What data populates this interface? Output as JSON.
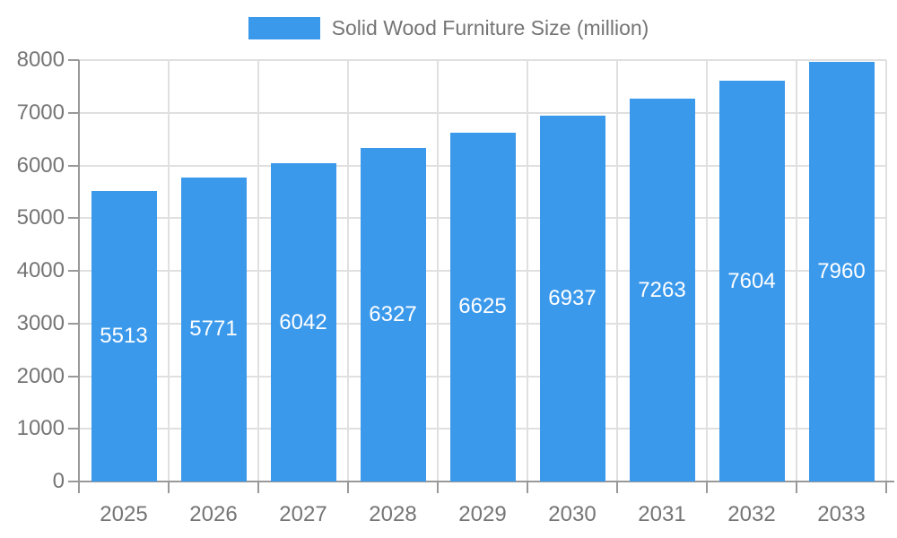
{
  "legend": {
    "label": "Solid Wood Furniture Size (million)",
    "swatch_color": "#3B99EC"
  },
  "chart_data": {
    "type": "bar",
    "title": "Solid Wood Furniture Size (million)",
    "categories": [
      "2025",
      "2026",
      "2027",
      "2028",
      "2029",
      "2030",
      "2031",
      "2032",
      "2033"
    ],
    "series": [
      {
        "name": "Solid Wood Furniture Size (million)",
        "color": "#3B99EC",
        "values": [
          5513,
          5771,
          6042,
          6327,
          6625,
          6937,
          7263,
          7604,
          7960
        ]
      }
    ],
    "xlabel": "",
    "ylabel": "",
    "ylim": [
      0,
      8000
    ],
    "yticks": [
      0,
      1000,
      2000,
      3000,
      4000,
      5000,
      6000,
      7000,
      8000
    ],
    "grid": true,
    "legend_position": "top",
    "bar_value_labels_shown": true
  },
  "colors": {
    "bar": "#3B99EC",
    "bar_label": "#FFFFFF",
    "grid": "#E0E0E0",
    "axis": "#999999",
    "text": "#757575",
    "background": "#FFFFFF"
  }
}
